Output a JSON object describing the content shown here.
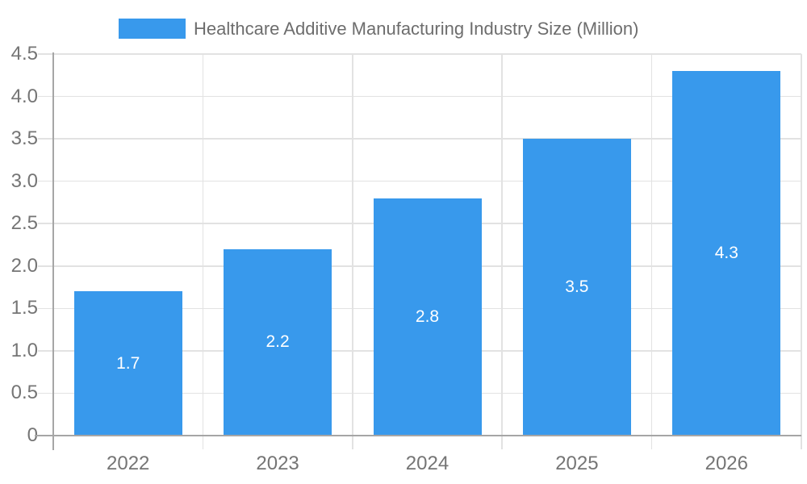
{
  "chart_data": {
    "type": "bar",
    "title": "Healthcare Additive Manufacturing Industry Size (Million)",
    "categories": [
      "2022",
      "2023",
      "2024",
      "2025",
      "2026"
    ],
    "values": [
      1.7,
      2.2,
      2.8,
      3.5,
      4.3
    ],
    "bar_labels": [
      "1.7",
      "2.2",
      "2.8",
      "3.5",
      "4.3"
    ],
    "xlabel": "",
    "ylabel": "",
    "ylim": [
      0,
      4.5
    ],
    "ytick_step": 0.5,
    "ytick_labels": [
      "0",
      "0.5",
      "1.0",
      "1.5",
      "2.0",
      "2.5",
      "3.0",
      "3.5",
      "4.0",
      "4.5"
    ],
    "grid": "on",
    "legend_position": "top-center",
    "colors": {
      "bar": "#3899EC",
      "grid_line": "#e2e2e2",
      "axis_line": "#a6a6a6",
      "tick_label": "#757575",
      "title_text": "#6d6d6d",
      "bar_label": "#ffffff"
    }
  }
}
